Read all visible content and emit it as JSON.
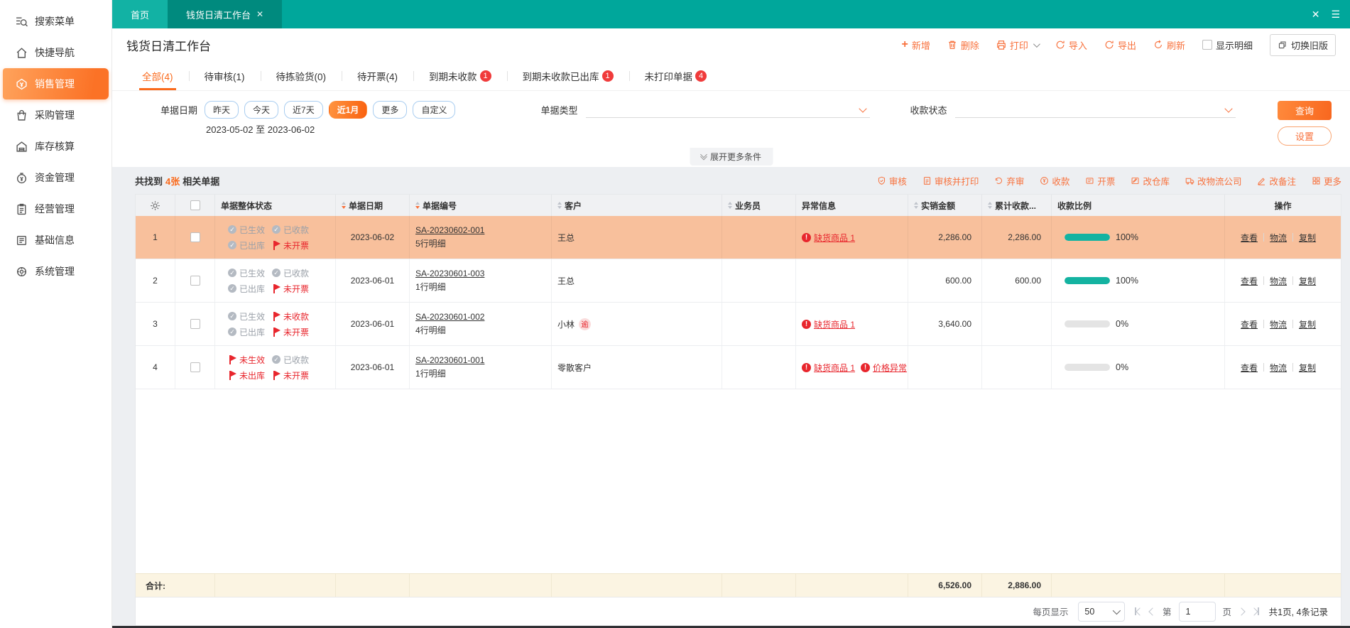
{
  "colors": {
    "accent": "#f8713c",
    "teal": "#00a79b",
    "red": "#e8262d",
    "row_highlight": "#f8c09c",
    "progress": "#14b3a1"
  },
  "topbar": {
    "home_tab": "首页",
    "active_tab": "钱货日清工作台",
    "close_label": "✕"
  },
  "sidebar": {
    "items": [
      {
        "label": "搜索菜单",
        "icon": "search-menu-icon"
      },
      {
        "label": "快捷导航",
        "icon": "quick-nav-icon"
      },
      {
        "label": "销售管理",
        "icon": "sales-icon",
        "active": true
      },
      {
        "label": "采购管理",
        "icon": "purchase-icon"
      },
      {
        "label": "库存核算",
        "icon": "inventory-icon"
      },
      {
        "label": "资金管理",
        "icon": "funds-icon"
      },
      {
        "label": "经营管理",
        "icon": "operations-icon"
      },
      {
        "label": "基础信息",
        "icon": "base-info-icon"
      },
      {
        "label": "系统管理",
        "icon": "system-icon"
      }
    ]
  },
  "page": {
    "title": "钱货日清工作台"
  },
  "toolbar": {
    "add": "新增",
    "delete": "删除",
    "print": "打印",
    "import": "导入",
    "export": "导出",
    "refresh": "刷新",
    "show_detail": "显示明细",
    "switch_old": "切换旧版"
  },
  "filter_tabs": [
    {
      "label": "全部(4)"
    },
    {
      "label": "待审核(1)"
    },
    {
      "label": "待拣验货(0)"
    },
    {
      "label": "待开票(4)"
    },
    {
      "label": "到期未收款",
      "badge": "1"
    },
    {
      "label": "到期未收款已出库",
      "badge": "1"
    },
    {
      "label": "未打印单据",
      "badge": "4"
    }
  ],
  "filters": {
    "date_label": "单据日期",
    "pills": [
      "昨天",
      "今天",
      "近7天",
      "近1月",
      "更多",
      "自定义"
    ],
    "date_range": "2023-05-02 至 2023-06-02",
    "doc_type_label": "单据类型",
    "payment_status_label": "收款状态",
    "expand_more": "展开更多条件",
    "search_button": "查询",
    "settings_button": "设置"
  },
  "summary": {
    "prefix": "共找到",
    "count": "4张",
    "suffix": "相关单据"
  },
  "batch_actions": [
    "审核",
    "审核并打印",
    "弃审",
    "收款",
    "开票",
    "改仓库",
    "改物流公司",
    "改备注",
    "更多"
  ],
  "table": {
    "headers": {
      "status": "单据整体状态",
      "date": "单据日期",
      "doc_no": "单据编号",
      "customer": "客户",
      "salesperson": "业务员",
      "exception": "异常信息",
      "amount": "实销金额",
      "received": "累计收款...",
      "ratio": "收款比例",
      "actions": "操作"
    },
    "rows": [
      {
        "num": "1",
        "date": "2023-06-02",
        "doc_no": "SA-20230602-001",
        "detail": "5行明细",
        "customer": "王总",
        "customer_badge": "",
        "salesperson": "",
        "statuses": [
          {
            "text": "已生效"
          },
          {
            "text": "已收款"
          },
          {
            "text": "已出库"
          },
          {
            "text": "未开票"
          }
        ],
        "exceptions": [
          "缺货商品 1"
        ],
        "amount": "2,286.00",
        "received": "2,286.00",
        "ratio": 100,
        "ratio_label": "100%",
        "actions": {
          "view": "查看",
          "logistics": "物流",
          "copy": "复制"
        }
      },
      {
        "num": "2",
        "date": "2023-06-01",
        "doc_no": "SA-20230601-003",
        "detail": "1行明细",
        "customer": "王总",
        "customer_badge": "",
        "salesperson": "",
        "statuses": [
          {
            "text": "已生效"
          },
          {
            "text": "已收款"
          },
          {
            "text": "已出库"
          },
          {
            "text": "未开票"
          }
        ],
        "exceptions": [],
        "amount": "600.00",
        "received": "600.00",
        "ratio": 100,
        "ratio_label": "100%",
        "actions": {
          "view": "查看",
          "logistics": "物流",
          "copy": "复制"
        }
      },
      {
        "num": "3",
        "date": "2023-06-01",
        "doc_no": "SA-20230601-002",
        "detail": "4行明细",
        "customer": "小林",
        "customer_badge": "逾",
        "salesperson": "",
        "statuses": [
          {
            "text": "已生效"
          },
          {
            "text": "未收款"
          },
          {
            "text": "已出库"
          },
          {
            "text": "未开票"
          }
        ],
        "exceptions": [
          "缺货商品 1"
        ],
        "amount": "3,640.00",
        "received": "",
        "ratio": 0,
        "ratio_label": "0%",
        "actions": {
          "view": "查看",
          "logistics": "物流",
          "copy": "复制"
        }
      },
      {
        "num": "4",
        "date": "2023-06-01",
        "doc_no": "SA-20230601-001",
        "detail": "1行明细",
        "customer": "零散客户",
        "customer_badge": "",
        "salesperson": "",
        "statuses": [
          {
            "text": "未生效"
          },
          {
            "text": "已收款"
          },
          {
            "text": "未出库"
          },
          {
            "text": "未开票"
          }
        ],
        "exceptions": [
          "缺货商品 1",
          "价格异常"
        ],
        "amount": "",
        "received": "",
        "ratio": 0,
        "ratio_label": "0%",
        "actions": {
          "view": "查看",
          "logistics": "物流",
          "copy": "复制"
        }
      }
    ],
    "totals": {
      "label": "合计:",
      "amount": "6,526.00",
      "received": "2,886.00"
    }
  },
  "pagination": {
    "per_page_label": "每页显示",
    "per_page": "50",
    "page_prefix": "第",
    "page": "1",
    "page_suffix": "页",
    "total": "共1页, 4条记录"
  }
}
